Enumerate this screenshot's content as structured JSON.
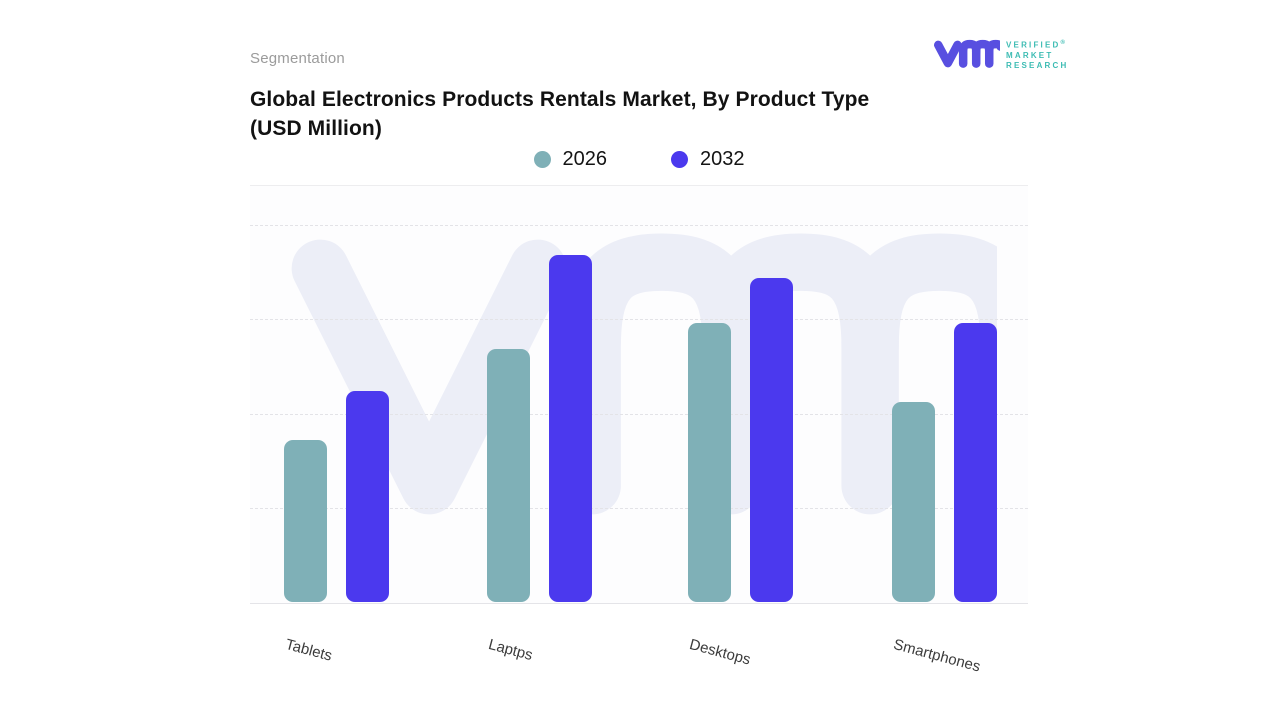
{
  "header": {
    "eyebrow": "Segmentation",
    "title_line1": "Global Electronics Products Rentals Market, By Product Type",
    "title_line2": "(USD Million)"
  },
  "logo": {
    "line1": "VERIFIED",
    "registered_mark": "®",
    "line2": "MARKET",
    "line3": "RESEARCH",
    "mark_color": "#584fe0",
    "text_color": "#3dbcb3"
  },
  "legend": [
    {
      "label": "2026",
      "color": "#7fb0b7"
    },
    {
      "label": "2032",
      "color": "#4b39ee"
    }
  ],
  "watermark_color": "#eceef7",
  "chart_data": {
    "type": "bar",
    "title": "Global Electronics Products Rentals Market, By Product Type (USD Million)",
    "categories": [
      "Tablets",
      "Laptps",
      "Desktops",
      "Smartphones"
    ],
    "series": [
      {
        "name": "2026",
        "color": "#7fb0b7",
        "values": [
          43,
          67,
          74,
          53
        ]
      },
      {
        "name": "2032",
        "color": "#4b39ee",
        "values": [
          56,
          92,
          86,
          74
        ]
      }
    ],
    "xlabel": "",
    "ylabel": "",
    "ylim": [
      0,
      100
    ],
    "y_axis_labels_visible": false,
    "values_are_estimated_relative": true,
    "grid": "horizontal-dashed",
    "gridline_values": [
      25,
      50,
      75,
      100
    ],
    "legend_position": "top-center",
    "category_label_rotation_deg": 15
  }
}
